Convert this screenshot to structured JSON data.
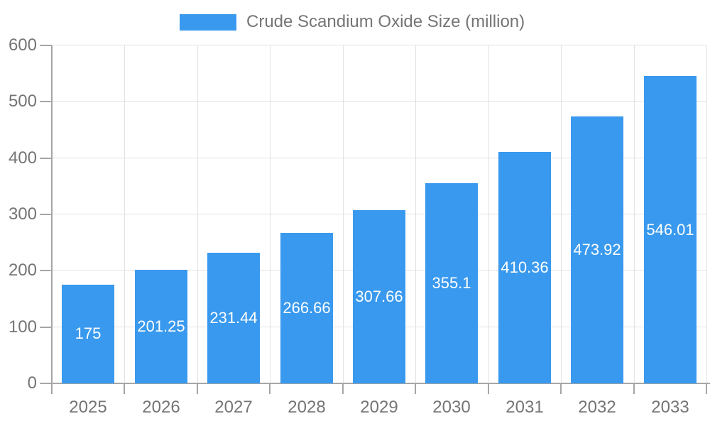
{
  "chart_data": {
    "type": "bar",
    "title": "Crude Scandium Oxide Size (million)",
    "legend_label": "Crude Scandium Oxide Size (million)",
    "legend_position": "top",
    "categories": [
      "2025",
      "2026",
      "2027",
      "2028",
      "2029",
      "2030",
      "2031",
      "2032",
      "2033"
    ],
    "values": [
      175,
      201.25,
      231.44,
      266.66,
      307.66,
      355.1,
      410.36,
      473.92,
      546.01
    ],
    "value_labels": [
      "175",
      "201.25",
      "231.44",
      "266.66",
      "307.66",
      "355.1",
      "410.36",
      "473.92",
      "546.01"
    ],
    "xlabel": "",
    "ylabel": "",
    "ylim": [
      0,
      600
    ],
    "y_ticks": [
      0,
      100,
      200,
      300,
      400,
      500,
      600
    ],
    "grid": true,
    "colors": {
      "bar": "#3999EE",
      "axis": "#A6A6A6",
      "grid": "#E2E2E2",
      "tick_label": "#757575",
      "bar_label": "#FFFFFF",
      "background": "#FFFFFF"
    }
  }
}
